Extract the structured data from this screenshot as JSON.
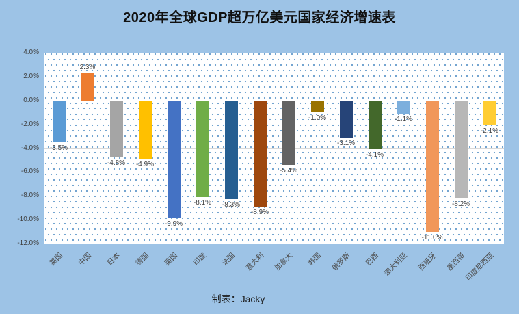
{
  "page_title": "2020年全球GDP超万亿美元国家经济增速表",
  "footer": {
    "credit": "制表：Jacky"
  },
  "colors": {
    "page_background": "#9DC3E6",
    "plot_background": "#FFFFFF",
    "plot_dot": "#5F97C9",
    "gridline": "#D9D9D9",
    "title_text": "#111111",
    "axis_text": "#404040",
    "data_label_text": "#404040",
    "category_text": "#4D4D4D"
  },
  "chart_data": {
    "type": "bar",
    "title": "2020年全球GDP超万亿美元国家经济增速表",
    "xlabel": "",
    "ylabel": "",
    "ylim": [
      -12,
      4
    ],
    "y_step": 2,
    "grid": true,
    "legend": "none",
    "categories": [
      "美国",
      "中国",
      "日本",
      "德国",
      "英国",
      "印度",
      "法国",
      "意大利",
      "加拿大",
      "韩国",
      "俄罗斯",
      "巴西",
      "澳大利亚",
      "西班牙",
      "墨西哥",
      "印度尼西亚"
    ],
    "values": [
      -3.5,
      2.3,
      -4.8,
      -4.9,
      -9.9,
      -8.1,
      -8.3,
      -8.9,
      -5.4,
      -1.0,
      -3.1,
      -4.1,
      -1.1,
      -11.0,
      -8.2,
      -2.1
    ],
    "data_labels": [
      "-3.5%",
      "2.3%",
      "-4.8%",
      "-4.9%",
      "-9.9%",
      "-8.1%",
      "-8.3%",
      "-8.9%",
      "-5.4%",
      "-1.0%",
      "-3.1%",
      "-4.1%",
      "-1.1%",
      "-11.0%",
      "-8.2%",
      "-2.1%"
    ],
    "bar_colors": [
      "#5B9BD5",
      "#ED7D31",
      "#A5A5A5",
      "#FFC000",
      "#4472C4",
      "#70AD47",
      "#255E91",
      "#9E480E",
      "#636363",
      "#997300",
      "#264478",
      "#43682B",
      "#7CAFDD",
      "#F1975A",
      "#B7B7B7",
      "#FFCD33"
    ],
    "y_ticks": [
      "4.0%",
      "2.0%",
      "0.0%",
      "-2.0%",
      "-4.0%",
      "-6.0%",
      "-8.0%",
      "-10.0%",
      "-12.0%"
    ]
  }
}
